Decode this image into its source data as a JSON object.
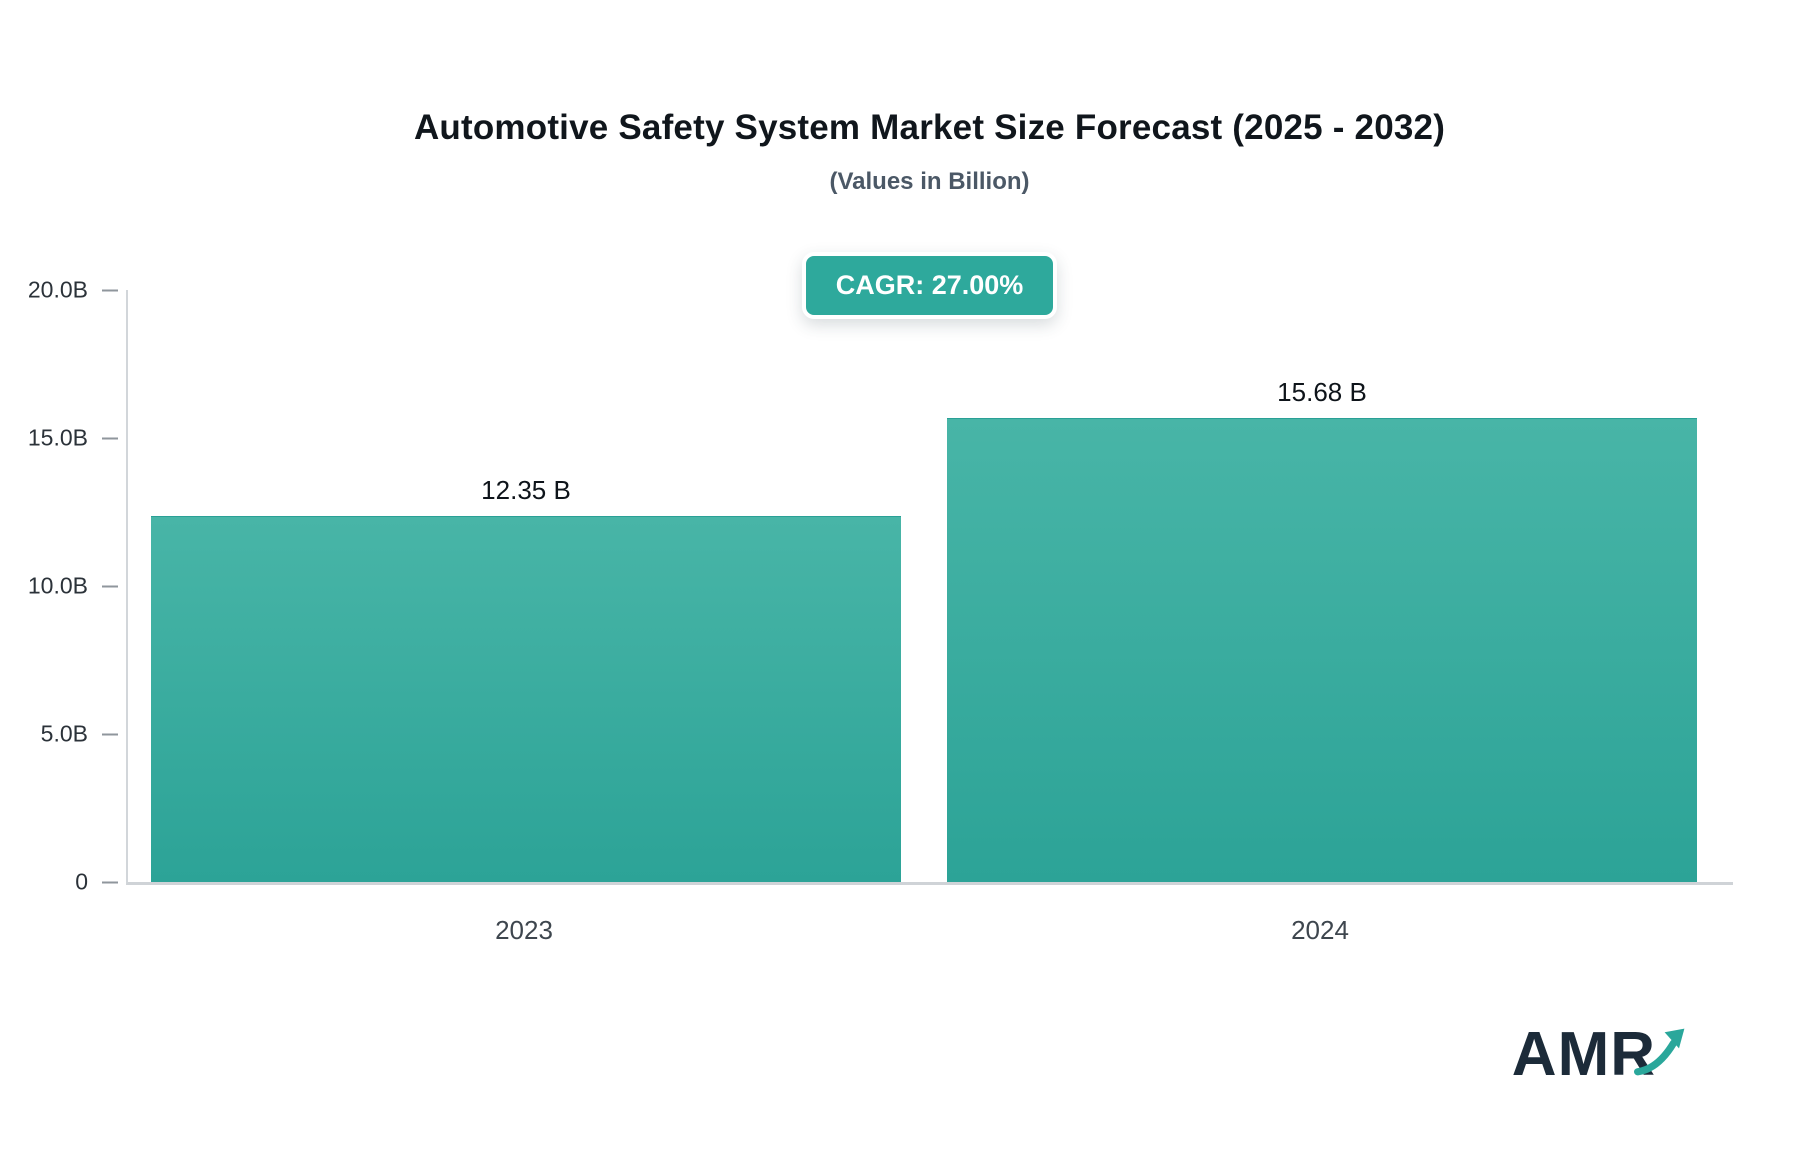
{
  "chart_data": {
    "type": "bar",
    "title": "Automotive Safety System Market Size Forecast (2025 - 2032)",
    "subtitle": "(Values in Billion)",
    "annotation": "CAGR: 27.00%",
    "categories": [
      "2023",
      "2024"
    ],
    "values": [
      12.35,
      15.68
    ],
    "value_labels": [
      "12.35 B",
      "15.68 B"
    ],
    "ylabel": "",
    "xlabel": "",
    "ylim": [
      0,
      20
    ],
    "ytick_labels": [
      "20.0B",
      "15.0B",
      "10.0B",
      "5.0B",
      "0"
    ],
    "grid": false,
    "legend_position": "none",
    "bar_gradient_top": "#48B5A7",
    "bar_gradient_bottom": "#2CA397",
    "accent_color": "#2EA99C"
  },
  "logo": {
    "text": "AMR",
    "text_color": "#1C2B39",
    "arrow_color": "#2AA79B",
    "arrow_icon": "trend-up-arrow"
  }
}
